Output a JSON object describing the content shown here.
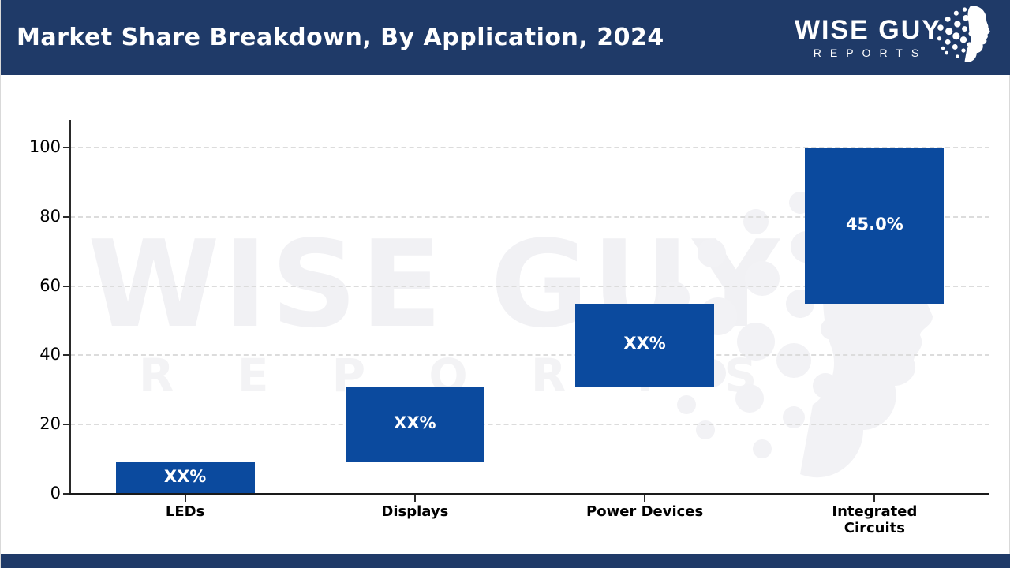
{
  "header": {
    "title": "Market Share Breakdown, By Application, 2024",
    "bg_color": "#1f3a68",
    "logo": {
      "line1": "WISE GUY",
      "line2": "REPORTS"
    }
  },
  "watermark": {
    "line1": "WISE GUY",
    "line2": "R E P O R T S"
  },
  "chart_data": {
    "type": "bar",
    "subtype": "waterfall-floating-bars",
    "title": "Market Share Breakdown, By Application, 2024",
    "xlabel": "",
    "ylabel": "",
    "categories": [
      "LEDs",
      "Displays",
      "Power Devices",
      "Integrated Circuits"
    ],
    "segments": [
      {
        "category": "LEDs",
        "label_lines": [
          "LEDs"
        ],
        "start": 0,
        "end": 9,
        "value_label": "XX%"
      },
      {
        "category": "Displays",
        "label_lines": [
          "Displays"
        ],
        "start": 9,
        "end": 31,
        "value_label": "XX%"
      },
      {
        "category": "Power Devices",
        "label_lines": [
          "Power Devices"
        ],
        "start": 31,
        "end": 55,
        "value_label": "XX%"
      },
      {
        "category": "Integrated Circuits",
        "label_lines": [
          "Integrated",
          "Circuits"
        ],
        "start": 55,
        "end": 100,
        "value_label": "45.0%"
      }
    ],
    "yticks": [
      0,
      20,
      40,
      60,
      80,
      100
    ],
    "ylim": [
      0,
      106
    ],
    "grid": "horizontal dashed, at 20/40/60/80/100",
    "legend": "none",
    "bar_color": "#0b4a9e",
    "bar_label_color": "#ffffff",
    "axis_color": "#1a1a1a",
    "grid_color": "#dcdcdc"
  }
}
